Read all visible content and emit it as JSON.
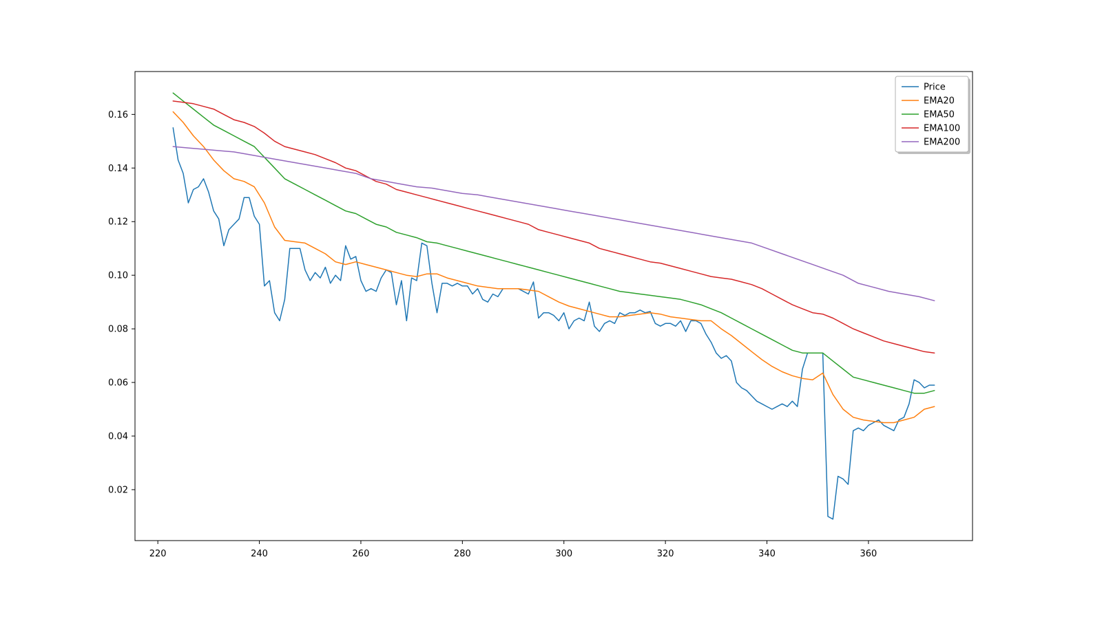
{
  "figure": {
    "background": "#ffffff"
  },
  "chart_data": {
    "type": "line",
    "title": "",
    "xlabel": "",
    "ylabel": "",
    "grid": false,
    "xlim": [
      215.5,
      380.5
    ],
    "ylim": [
      0.001,
      0.176
    ],
    "xticks": [
      220,
      240,
      260,
      280,
      300,
      320,
      340,
      360
    ],
    "yticks": [
      0.02,
      0.04,
      0.06,
      0.08,
      0.1,
      0.12,
      0.14,
      0.16
    ],
    "legend": {
      "position": "upper right",
      "entries": [
        "Price",
        "EMA20",
        "EMA50",
        "EMA100",
        "EMA200"
      ]
    },
    "series": [
      {
        "name": "Price",
        "color": "#1f77b4",
        "x": [
          223,
          224,
          225,
          226,
          227,
          228,
          229,
          230,
          231,
          232,
          233,
          234,
          235,
          236,
          237,
          238,
          239,
          240,
          241,
          242,
          243,
          244,
          245,
          246,
          247,
          248,
          249,
          250,
          251,
          252,
          253,
          254,
          255,
          256,
          257,
          258,
          259,
          260,
          261,
          262,
          263,
          264,
          265,
          266,
          267,
          268,
          269,
          270,
          271,
          272,
          273,
          274,
          275,
          276,
          277,
          278,
          279,
          280,
          281,
          282,
          283,
          284,
          285,
          286,
          287,
          288,
          289,
          290,
          291,
          292,
          293,
          294,
          295,
          296,
          297,
          298,
          299,
          300,
          301,
          302,
          303,
          304,
          305,
          306,
          307,
          308,
          309,
          310,
          311,
          312,
          313,
          314,
          315,
          316,
          317,
          318,
          319,
          320,
          321,
          322,
          323,
          324,
          325,
          326,
          327,
          328,
          329,
          330,
          331,
          332,
          333,
          334,
          335,
          336,
          337,
          338,
          339,
          340,
          341,
          342,
          343,
          344,
          345,
          346,
          347,
          348,
          349,
          350,
          351,
          352,
          353,
          354,
          355,
          356,
          357,
          358,
          359,
          360,
          361,
          362,
          363,
          364,
          365,
          366,
          367,
          368,
          369,
          370,
          371,
          372,
          373
        ],
        "y": [
          0.155,
          0.143,
          0.138,
          0.127,
          0.132,
          0.133,
          0.136,
          0.131,
          0.124,
          0.121,
          0.111,
          0.117,
          0.119,
          0.121,
          0.129,
          0.129,
          0.122,
          0.119,
          0.096,
          0.098,
          0.086,
          0.083,
          0.091,
          0.11,
          0.11,
          0.11,
          0.102,
          0.098,
          0.101,
          0.099,
          0.103,
          0.097,
          0.1,
          0.098,
          0.111,
          0.106,
          0.107,
          0.098,
          0.094,
          0.095,
          0.094,
          0.099,
          0.102,
          0.101,
          0.089,
          0.098,
          0.083,
          0.099,
          0.098,
          0.112,
          0.111,
          0.097,
          0.086,
          0.097,
          0.097,
          0.096,
          0.097,
          0.096,
          0.096,
          0.093,
          0.095,
          0.091,
          0.09,
          0.093,
          0.092,
          0.095,
          0.095,
          0.095,
          0.095,
          0.094,
          0.093,
          0.0975,
          0.084,
          0.086,
          0.086,
          0.085,
          0.083,
          0.086,
          0.08,
          0.083,
          0.084,
          0.083,
          0.09,
          0.081,
          0.079,
          0.082,
          0.083,
          0.082,
          0.086,
          0.085,
          0.086,
          0.086,
          0.087,
          0.086,
          0.0865,
          0.082,
          0.081,
          0.082,
          0.082,
          0.081,
          0.083,
          0.079,
          0.083,
          0.083,
          0.082,
          0.078,
          0.075,
          0.071,
          0.069,
          0.07,
          0.068,
          0.06,
          0.058,
          0.057,
          0.055,
          0.053,
          0.052,
          0.051,
          0.05,
          0.051,
          0.052,
          0.051,
          0.053,
          0.051,
          0.065,
          0.071,
          0.071,
          0.071,
          0.071,
          0.01,
          0.009,
          0.025,
          0.024,
          0.022,
          0.042,
          0.043,
          0.042,
          0.044,
          0.045,
          0.046,
          0.044,
          0.043,
          0.042,
          0.046,
          0.047,
          0.052,
          0.061,
          0.06,
          0.058,
          0.059,
          0.059
        ]
      },
      {
        "name": "EMA20",
        "color": "#ff7f0e",
        "x": [
          223,
          225,
          227,
          229,
          231,
          233,
          235,
          237,
          239,
          241,
          243,
          245,
          247,
          249,
          251,
          253,
          255,
          257,
          259,
          261,
          263,
          265,
          267,
          269,
          271,
          273,
          275,
          277,
          279,
          281,
          283,
          285,
          287,
          289,
          291,
          293,
          295,
          297,
          299,
          301,
          303,
          305,
          307,
          309,
          311,
          313,
          315,
          317,
          319,
          321,
          323,
          325,
          327,
          329,
          331,
          333,
          335,
          337,
          339,
          341,
          343,
          345,
          347,
          349,
          351,
          353,
          355,
          357,
          359,
          361,
          363,
          365,
          367,
          369,
          371,
          373
        ],
        "y": [
          0.161,
          0.157,
          0.152,
          0.148,
          0.143,
          0.139,
          0.136,
          0.135,
          0.133,
          0.127,
          0.118,
          0.113,
          0.1125,
          0.112,
          0.11,
          0.108,
          0.105,
          0.104,
          0.105,
          0.104,
          0.103,
          0.102,
          0.101,
          0.1,
          0.0995,
          0.1005,
          0.1005,
          0.099,
          0.098,
          0.097,
          0.096,
          0.0955,
          0.095,
          0.095,
          0.095,
          0.0945,
          0.094,
          0.092,
          0.09,
          0.0885,
          0.0875,
          0.0865,
          0.0855,
          0.0845,
          0.0845,
          0.085,
          0.0855,
          0.086,
          0.0855,
          0.0845,
          0.084,
          0.0835,
          0.083,
          0.083,
          0.08,
          0.0775,
          0.0745,
          0.0715,
          0.0685,
          0.066,
          0.064,
          0.0625,
          0.0615,
          0.061,
          0.0635,
          0.0555,
          0.05,
          0.047,
          0.046,
          0.0455,
          0.045,
          0.045,
          0.046,
          0.047,
          0.05,
          0.051
        ]
      },
      {
        "name": "EMA50",
        "color": "#2ca02c",
        "x": [
          223,
          225,
          227,
          229,
          231,
          233,
          235,
          237,
          239,
          241,
          243,
          245,
          247,
          249,
          251,
          253,
          255,
          257,
          259,
          261,
          263,
          265,
          267,
          269,
          271,
          273,
          275,
          277,
          279,
          281,
          283,
          285,
          287,
          289,
          291,
          293,
          295,
          297,
          299,
          301,
          303,
          305,
          307,
          309,
          311,
          313,
          315,
          317,
          319,
          321,
          323,
          325,
          327,
          329,
          331,
          333,
          335,
          337,
          339,
          341,
          343,
          345,
          347,
          349,
          351,
          353,
          355,
          357,
          359,
          361,
          363,
          365,
          367,
          369,
          371,
          373
        ],
        "y": [
          0.168,
          0.165,
          0.162,
          0.159,
          0.156,
          0.154,
          0.152,
          0.15,
          0.148,
          0.144,
          0.14,
          0.136,
          0.134,
          0.132,
          0.13,
          0.128,
          0.126,
          0.124,
          0.123,
          0.121,
          0.119,
          0.118,
          0.116,
          0.115,
          0.114,
          0.1125,
          0.112,
          0.111,
          0.11,
          0.109,
          0.108,
          0.107,
          0.106,
          0.105,
          0.104,
          0.103,
          0.102,
          0.101,
          0.1,
          0.099,
          0.098,
          0.097,
          0.096,
          0.095,
          0.094,
          0.0935,
          0.093,
          0.0925,
          0.092,
          0.0915,
          0.091,
          0.09,
          0.089,
          0.0875,
          0.086,
          0.084,
          0.082,
          0.08,
          0.078,
          0.076,
          0.074,
          0.072,
          0.071,
          0.071,
          0.071,
          0.068,
          0.065,
          0.062,
          0.061,
          0.06,
          0.059,
          0.058,
          0.057,
          0.056,
          0.056,
          0.057
        ]
      },
      {
        "name": "EMA100",
        "color": "#d62728",
        "x": [
          223,
          225,
          227,
          229,
          231,
          233,
          235,
          237,
          239,
          241,
          243,
          245,
          247,
          249,
          251,
          253,
          255,
          257,
          259,
          261,
          263,
          265,
          267,
          269,
          271,
          273,
          275,
          277,
          279,
          281,
          283,
          285,
          287,
          289,
          291,
          293,
          295,
          297,
          299,
          301,
          303,
          305,
          307,
          309,
          311,
          313,
          315,
          317,
          319,
          321,
          323,
          325,
          327,
          329,
          331,
          333,
          335,
          337,
          339,
          341,
          343,
          345,
          347,
          349,
          351,
          353,
          355,
          357,
          359,
          361,
          363,
          365,
          367,
          369,
          371,
          373
        ],
        "y": [
          0.165,
          0.1645,
          0.164,
          0.163,
          0.162,
          0.16,
          0.158,
          0.157,
          0.1555,
          0.153,
          0.15,
          0.148,
          0.147,
          0.146,
          0.145,
          0.1435,
          0.142,
          0.14,
          0.139,
          0.137,
          0.135,
          0.134,
          0.132,
          0.131,
          0.13,
          0.129,
          0.128,
          0.127,
          0.126,
          0.125,
          0.124,
          0.123,
          0.122,
          0.121,
          0.12,
          0.119,
          0.117,
          0.116,
          0.115,
          0.114,
          0.113,
          0.112,
          0.11,
          0.109,
          0.108,
          0.107,
          0.106,
          0.105,
          0.1045,
          0.1035,
          0.1025,
          0.1015,
          0.1005,
          0.0995,
          0.099,
          0.0985,
          0.0975,
          0.0965,
          0.095,
          0.093,
          0.091,
          0.089,
          0.0875,
          0.086,
          0.0855,
          0.084,
          0.082,
          0.08,
          0.0785,
          0.077,
          0.0755,
          0.0745,
          0.0735,
          0.0725,
          0.0715,
          0.071
        ]
      },
      {
        "name": "EMA200",
        "color": "#9467bd",
        "x": [
          223,
          226,
          229,
          232,
          235,
          238,
          241,
          244,
          247,
          250,
          253,
          256,
          259,
          262,
          265,
          268,
          271,
          274,
          277,
          280,
          283,
          286,
          289,
          292,
          295,
          298,
          301,
          304,
          307,
          310,
          313,
          316,
          319,
          322,
          325,
          328,
          331,
          334,
          337,
          340,
          343,
          346,
          349,
          352,
          355,
          358,
          361,
          364,
          367,
          370,
          373
        ],
        "y": [
          0.148,
          0.1475,
          0.147,
          0.1465,
          0.146,
          0.145,
          0.144,
          0.143,
          0.142,
          0.141,
          0.14,
          0.139,
          0.138,
          0.136,
          0.135,
          0.134,
          0.133,
          0.1325,
          0.1315,
          0.1305,
          0.13,
          0.129,
          0.128,
          0.127,
          0.126,
          0.125,
          0.124,
          0.123,
          0.122,
          0.121,
          0.12,
          0.119,
          0.118,
          0.117,
          0.116,
          0.115,
          0.114,
          0.113,
          0.112,
          0.11,
          0.108,
          0.106,
          0.104,
          0.102,
          0.1,
          0.097,
          0.0955,
          0.094,
          0.093,
          0.092,
          0.0905
        ]
      }
    ]
  }
}
